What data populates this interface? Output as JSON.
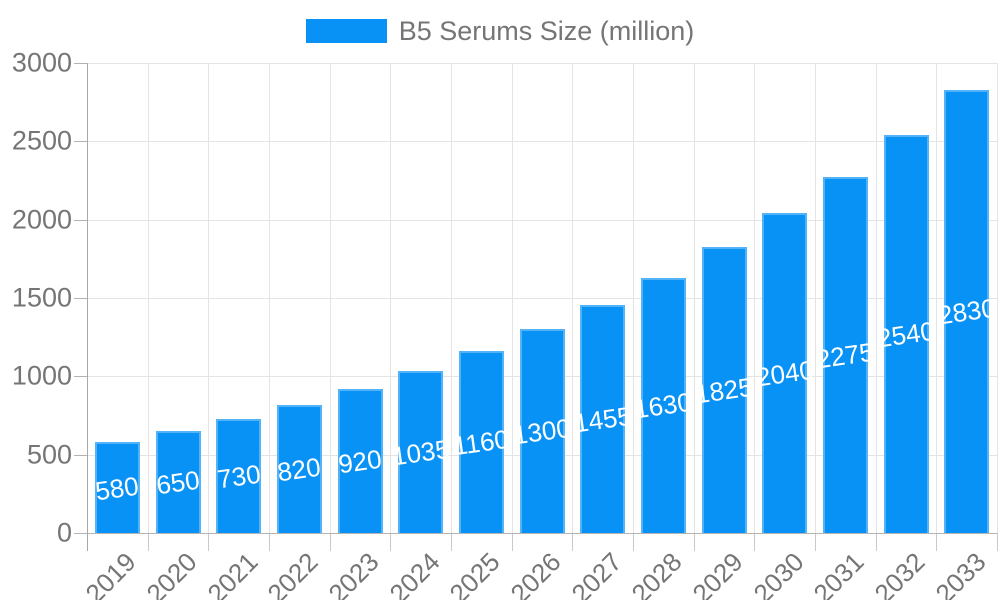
{
  "chart_data": {
    "type": "bar",
    "title": "",
    "legend": {
      "position": "top",
      "label": "B5 Serums Size (million)"
    },
    "categories": [
      "2019",
      "2020",
      "2021",
      "2022",
      "2023",
      "2024",
      "2025",
      "2026",
      "2027",
      "2028",
      "2029",
      "2030",
      "2031",
      "2032",
      "2033"
    ],
    "series": [
      {
        "name": "B5 Serums Size (million)",
        "values": [
          580,
          650,
          730,
          820,
          920,
          1035,
          1160,
          1300,
          1455,
          1630,
          1825,
          2040,
          2275,
          2540,
          2830
        ]
      }
    ],
    "xlabel": "",
    "ylabel": "",
    "ylim": [
      0,
      3000
    ],
    "yticks": [
      0,
      500,
      1000,
      1500,
      2000,
      2500,
      3000
    ],
    "grid": true,
    "value_labels": "inside-center-white",
    "colors": {
      "bar": "#0992f5",
      "bar_label_text": "#ffffff",
      "axis_text": "#757575",
      "gridline": "#e4e4e4",
      "axis_line": "#b2b2b2"
    }
  }
}
